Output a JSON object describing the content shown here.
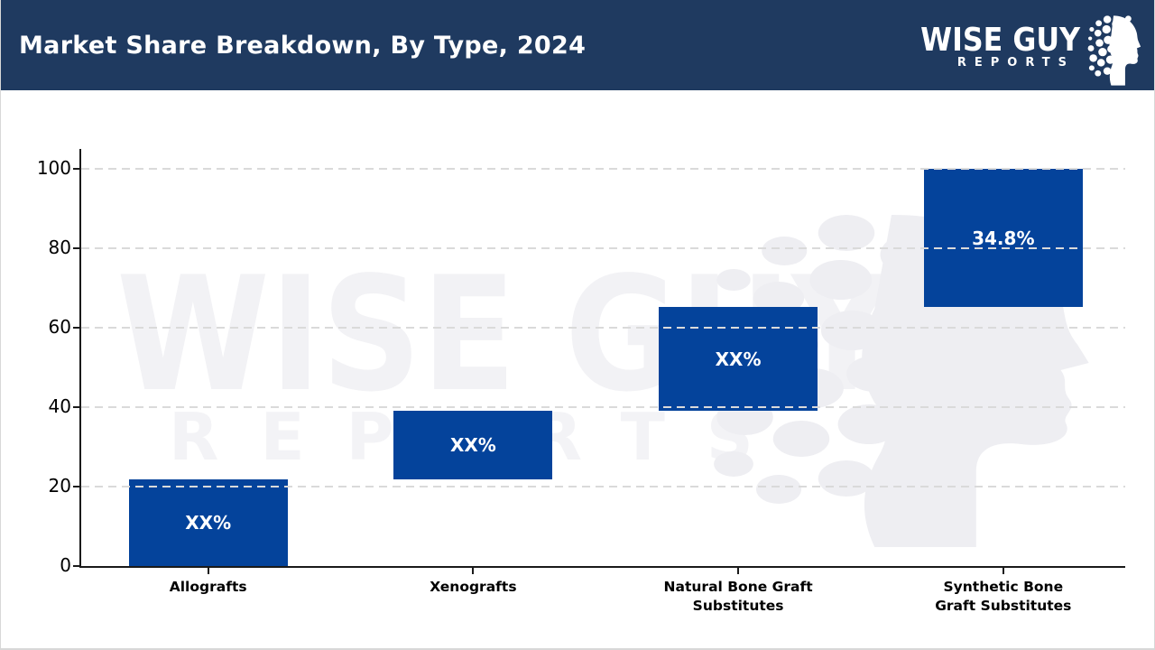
{
  "header": {
    "title": "Market Share Breakdown, By Type, 2024",
    "bg_color": "#1f3a60",
    "logo": {
      "wordmark": "WISE GUY",
      "subtext": "REPORTS"
    }
  },
  "watermark": {
    "wordmark": "WISE GUY",
    "subtext": "REPORTS"
  },
  "chart_data": {
    "type": "bar",
    "variant": "waterfall",
    "title": "Market Share Breakdown, By Type, 2024",
    "xlabel": "",
    "ylabel": "",
    "ylim": [
      0,
      100
    ],
    "yticks": [
      0,
      20,
      40,
      60,
      80,
      100
    ],
    "grid": "horizontal-dashed",
    "legend": "none",
    "bar_color": "#04439b",
    "bar_label_color": "#ffffff",
    "categories": [
      [
        "Allografts"
      ],
      [
        "Xenografts"
      ],
      [
        "Natural Bone Graft",
        "Substitutes"
      ],
      [
        "Synthetic Bone",
        "Graft Substitutes"
      ]
    ],
    "bars": [
      {
        "start": 0,
        "end": 21.8,
        "label": "XX%"
      },
      {
        "start": 21.8,
        "end": 39.1,
        "label": "XX%"
      },
      {
        "start": 39.1,
        "end": 65.2,
        "label": "XX%"
      },
      {
        "start": 65.2,
        "end": 100,
        "label": "34.8%"
      }
    ]
  }
}
